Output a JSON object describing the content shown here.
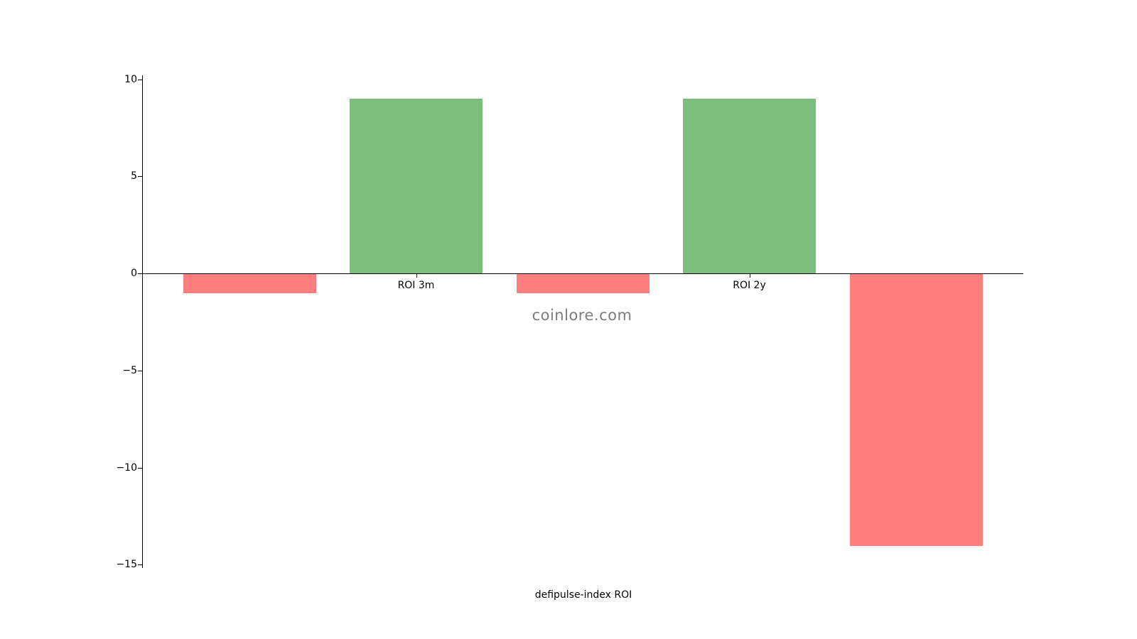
{
  "watermark": {
    "text": "coinlore.com",
    "color": "#7a7c7f"
  },
  "chart_data": {
    "type": "bar",
    "title": "",
    "xlabel": "defipulse-index ROI",
    "ylabel": "",
    "categories": [
      "",
      "ROI 3m",
      "",
      "ROI 2y",
      ""
    ],
    "values": [
      -1,
      9,
      -1,
      9,
      -14
    ],
    "bar_colors": [
      "#ff7f7f",
      "#7dbe7d",
      "#ff7f7f",
      "#7dbe7d",
      "#ff7f7f"
    ],
    "positive_color": "#7dbe7d",
    "negative_color": "#ff7f7f",
    "y_ticks": [
      10,
      5,
      0,
      -5,
      -10,
      -15
    ],
    "ylim": [
      -15.2,
      10.3
    ],
    "grid": false,
    "legend_position": "none",
    "axis_color": "#000000",
    "tick_label_color": "#000000",
    "background": "#ffffff"
  }
}
